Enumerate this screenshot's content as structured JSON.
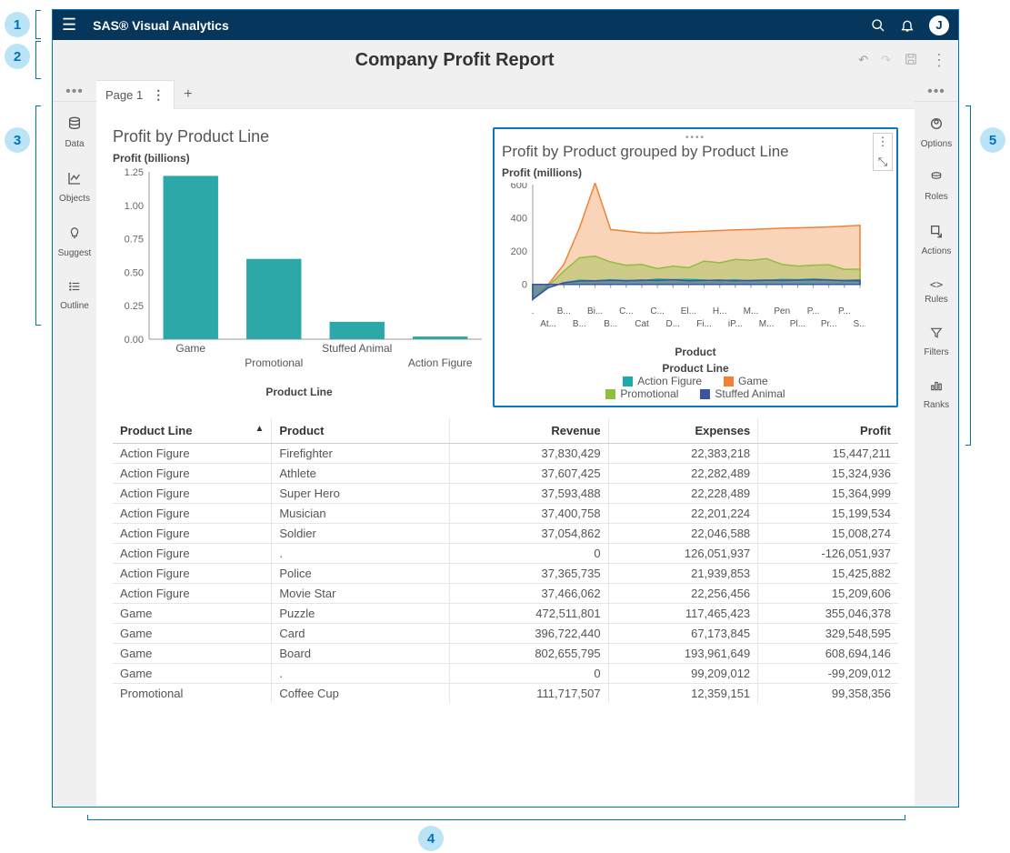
{
  "topbar": {
    "app_title": "SAS® Visual Analytics",
    "avatar_initial": "J"
  },
  "titlebar": {
    "report_title": "Company Profit Report"
  },
  "left_rail": {
    "items": [
      {
        "label": "Data"
      },
      {
        "label": "Objects"
      },
      {
        "label": "Suggest"
      },
      {
        "label": "Outline"
      }
    ]
  },
  "right_rail": {
    "items": [
      {
        "label": "Options"
      },
      {
        "label": "Roles"
      },
      {
        "label": "Actions"
      },
      {
        "label": "Rules"
      },
      {
        "label": "Filters"
      },
      {
        "label": "Ranks"
      }
    ]
  },
  "tabs": {
    "page1": "Page 1"
  },
  "bar_chart": {
    "title": "Profit by Product Line",
    "y_axis_title": "Profit (billions)",
    "x_axis_title": "Product Line",
    "color": "#2ca8a8",
    "bg": "#ffffff",
    "grid": "#e6e6e6",
    "ylim": [
      0,
      1.25
    ],
    "ytick_step": 0.25,
    "yticks": [
      "1.25",
      "1.00",
      "0.75",
      "0.50",
      "0.25",
      "0.00"
    ],
    "categories": [
      "Game",
      "Promotional",
      "Stuffed Animal",
      "Action Figure"
    ],
    "values": [
      1.22,
      0.6,
      0.13,
      0.02
    ]
  },
  "line_chart": {
    "title": "Profit by Product grouped by Product Line",
    "y_axis_title": "Profit (millions)",
    "x_axis_title": "Product",
    "legend_title": "Product Line",
    "bg": "#ffffff",
    "grid": "#e6e6e6",
    "ylim": [
      -100,
      600
    ],
    "ytick_step": 200,
    "yticks": [
      "600",
      "400",
      "200",
      "0"
    ],
    "xticks_top": [
      ".",
      "B...",
      "Bi...",
      "C...",
      "C...",
      "El...",
      "H...",
      "M...",
      "Pen",
      "P...",
      "P..."
    ],
    "xticks_bot": [
      "At...",
      "B...",
      "B...",
      "Cat",
      "D...",
      "Fi...",
      "iP...",
      "M...",
      "Pl...",
      "Pr...",
      "S..."
    ],
    "series": [
      {
        "name": "Action Figure",
        "color": "#1caba8",
        "fill_opacity": 0.35,
        "points": [
          -90,
          -20,
          10,
          25,
          22,
          28,
          24,
          22,
          32,
          28,
          30,
          26,
          22,
          28,
          20,
          24,
          30,
          28,
          32,
          28,
          20,
          18
        ]
      },
      {
        "name": "Game",
        "color": "#ee8336",
        "fill_opacity": 0.35,
        "points": [
          -90,
          0,
          120,
          340,
          610,
          330,
          320,
          310,
          308,
          312,
          316,
          320,
          324,
          328,
          330,
          334,
          338,
          340,
          342,
          346,
          350,
          355
        ]
      },
      {
        "name": "Promotional",
        "color": "#8fbf3f",
        "fill_opacity": 0.4,
        "points": [
          -90,
          -10,
          80,
          160,
          170,
          135,
          115,
          120,
          95,
          110,
          100,
          140,
          130,
          150,
          145,
          155,
          120,
          110,
          115,
          118,
          90,
          92
        ]
      },
      {
        "name": "Stuffed Animal",
        "color": "#3b53a0",
        "fill_opacity": 0.4,
        "points": [
          -90,
          -20,
          10,
          20,
          22,
          24,
          22,
          26,
          24,
          28,
          22,
          24,
          26,
          22,
          24,
          26,
          24,
          26,
          28,
          26,
          24,
          26
        ]
      }
    ]
  },
  "table": {
    "columns": [
      "Product Line",
      "Product",
      "Revenue",
      "Expenses",
      "Profit"
    ],
    "sorted_col": 0,
    "col_widths": [
      "170px",
      "190px",
      "170px",
      "160px",
      "150px"
    ],
    "rows": [
      [
        "Action Figure",
        "Firefighter",
        "37,830,429",
        "22,383,218",
        "15,447,211"
      ],
      [
        "Action Figure",
        "Athlete",
        "37,607,425",
        "22,282,489",
        "15,324,936"
      ],
      [
        "Action Figure",
        "Super Hero",
        "37,593,488",
        "22,228,489",
        "15,364,999"
      ],
      [
        "Action Figure",
        "Musician",
        "37,400,758",
        "22,201,224",
        "15,199,534"
      ],
      [
        "Action Figure",
        "Soldier",
        "37,054,862",
        "22,046,588",
        "15,008,274"
      ],
      [
        "Action Figure",
        ".",
        "0",
        "126,051,937",
        "-126,051,937"
      ],
      [
        "Action Figure",
        "Police",
        "37,365,735",
        "21,939,853",
        "15,425,882"
      ],
      [
        "Action Figure",
        "Movie Star",
        "37,466,062",
        "22,256,456",
        "15,209,606"
      ],
      [
        "Game",
        "Puzzle",
        "472,511,801",
        "117,465,423",
        "355,046,378"
      ],
      [
        "Game",
        "Card",
        "396,722,440",
        "67,173,845",
        "329,548,595"
      ],
      [
        "Game",
        "Board",
        "802,655,795",
        "193,961,649",
        "608,694,146"
      ],
      [
        "Game",
        ".",
        "0",
        "99,209,012",
        "-99,209,012"
      ],
      [
        "Promotional",
        "Coffee Cup",
        "111,717,507",
        "12,359,151",
        "99,358,356"
      ]
    ]
  },
  "callouts": {
    "c1": "1",
    "c2": "2",
    "c3": "3",
    "c4": "4",
    "c5": "5"
  }
}
